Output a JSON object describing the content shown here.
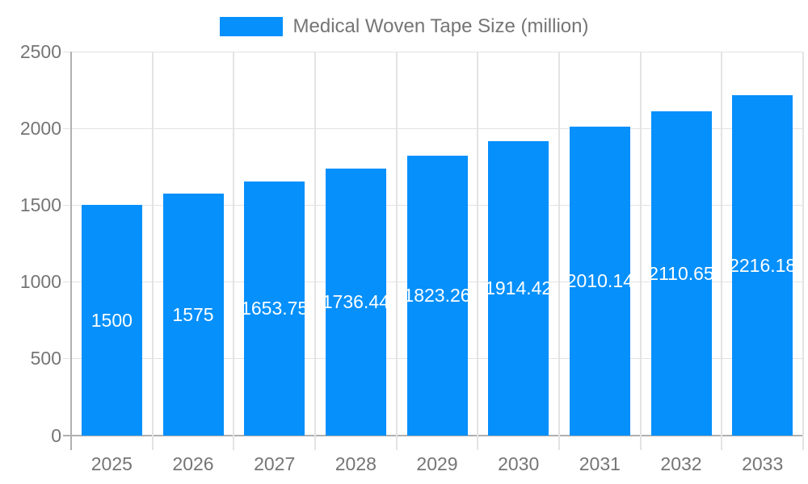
{
  "legend": {
    "label": "Medical Woven Tape Size (million)"
  },
  "chart_data": {
    "type": "bar",
    "title": "Medical Woven Tape Size (million)",
    "categories": [
      "2025",
      "2026",
      "2027",
      "2028",
      "2029",
      "2030",
      "2031",
      "2032",
      "2033"
    ],
    "values": [
      1500,
      1575,
      1653.75,
      1736.44,
      1823.26,
      1914.42,
      2010.14,
      2110.65,
      2216.18
    ],
    "value_labels": [
      "1500",
      "1575",
      "1653.75",
      "1736.44",
      "1823.26",
      "1914.42",
      "2010.14",
      "2110.65",
      "2216.18"
    ],
    "xlabel": "",
    "ylabel": "",
    "ylim": [
      0,
      2500
    ],
    "yticks": [
      0,
      500,
      1000,
      1500,
      2000,
      2500
    ],
    "grid": true,
    "legend_position": "top",
    "colors": {
      "bar": "#0590fc",
      "value_label": "#ffffff",
      "axis_text": "#757575",
      "gridline": "#e3e3e3",
      "axis_line": "#b0b0b0"
    }
  }
}
